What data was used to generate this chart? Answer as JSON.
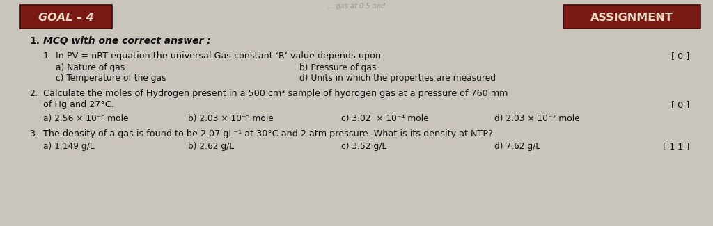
{
  "page_bg": "#c9c5bc",
  "goal_label": "GOAL – 4",
  "goal_bg": "#7a1a14",
  "goal_text_color": "#e8d8c8",
  "assignment_label": "ASSIGNMENT",
  "assignment_bg": "#7a1a14",
  "assignment_text_color": "#e8d8c8",
  "section_num": "1.",
  "section_header": "MCQ with one correct answer :",
  "q1_num": "1.",
  "q1_text": "In PV = nRT equation the universal Gas constant ‘R’ value depends upon",
  "q1_mark": "[ 0 ]",
  "q1_a": "a) Nature of gas",
  "q1_b": "b) Pressure of gas",
  "q1_c": "c) Temperature of the gas",
  "q1_d": "d) Units in which the properties are measured",
  "q2_num": "2.",
  "q2_line1": "Calculate the moles of Hydrogen present in a 500 cm³ sample of hydrogen gas at a pressure of 760 mm",
  "q2_line2": "of Hg and 27°C.",
  "q2_mark": "[ 0 ]",
  "q2_a": "a) 2.56 × 10⁻⁶ mole",
  "q2_b": "b) 2.03 × 10⁻⁵ mole",
  "q2_c": "c) 3.02  × 10⁻⁴ mole",
  "q2_d": "d) 2.03 × 10⁻² mole",
  "q3_num": "3.",
  "q3_text": "The density of a gas is found to be 2.07 gL⁻¹ at 30°C and 2 atm pressure. What is its density at NTP?",
  "q3_a": "a) 1.149 g/L",
  "q3_b": "b) 2.62 g/L",
  "q3_c": "c) 3.52 g/L",
  "q3_d": "d) 7.62 g/L",
  "q3_mark": "[ 1 1 ]",
  "top_text": "... gas at 0.5 and",
  "text_color": "#1c1c1c",
  "dark_color": "#111111"
}
